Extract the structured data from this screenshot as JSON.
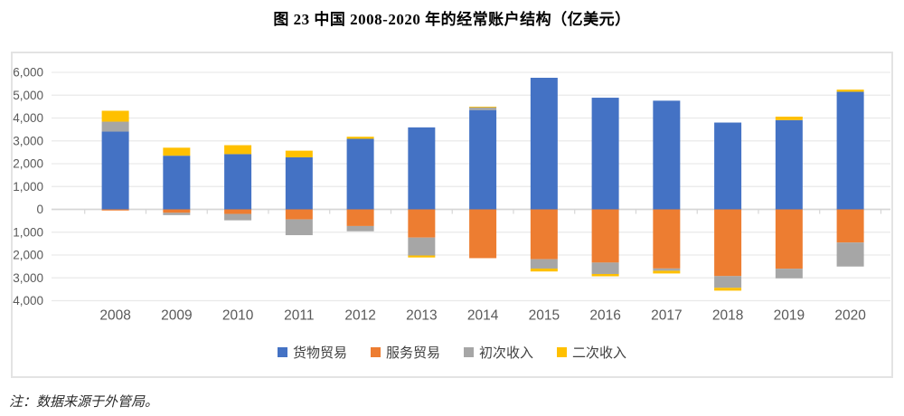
{
  "title": "图 23 中国 2008-2020 年的经常账户结构（亿美元）",
  "note": "注：数据来源于外管局。",
  "colors": {
    "goods": "#4472C4",
    "services": "#ED7D31",
    "primary_income": "#A6A6A6",
    "secondary_income": "#FFC000",
    "axis_text": "#595959",
    "gridline": "#e9e9e9",
    "zero_axis": "#d6d6d6",
    "frame_border": "#e3e3e3"
  },
  "chart_data": {
    "type": "bar",
    "stacked": true,
    "title": "图 23 中国 2008-2020 年的经常账户结构（亿美元）",
    "xlabel": "",
    "ylabel": "",
    "ylim": [
      -4000,
      6000
    ],
    "ytick_step": 1000,
    "grid": true,
    "legend_position": "bottom",
    "categories": [
      "2008",
      "2009",
      "2010",
      "2011",
      "2012",
      "2013",
      "2014",
      "2015",
      "2016",
      "2017",
      "2018",
      "2019",
      "2020"
    ],
    "series": [
      {
        "name": "货物贸易",
        "color": "#4472C4",
        "values": [
          3405,
          2350,
          2420,
          2280,
          3090,
          3590,
          4350,
          5762,
          4889,
          4759,
          3801,
          3910,
          5150
        ]
      },
      {
        "name": "服务贸易",
        "color": "#ED7D31",
        "values": [
          -50,
          -150,
          -200,
          -440,
          -730,
          -1236,
          -2137,
          -2183,
          -2331,
          -2589,
          -2922,
          -2600,
          -1453
        ]
      },
      {
        "name": "初次收入",
        "color": "#A6A6A6",
        "values": [
          435,
          -100,
          -280,
          -690,
          -230,
          -784,
          133,
          -410,
          -500,
          -100,
          -514,
          -420,
          -1051
        ]
      },
      {
        "name": "二次收入",
        "color": "#FFC000",
        "values": [
          478,
          350,
          390,
          290,
          90,
          -87,
          14,
          -127,
          -100,
          -119,
          -124,
          150,
          94
        ]
      }
    ]
  },
  "geometry_note": "y axis ticks every 1000 from -4000 to 6000"
}
